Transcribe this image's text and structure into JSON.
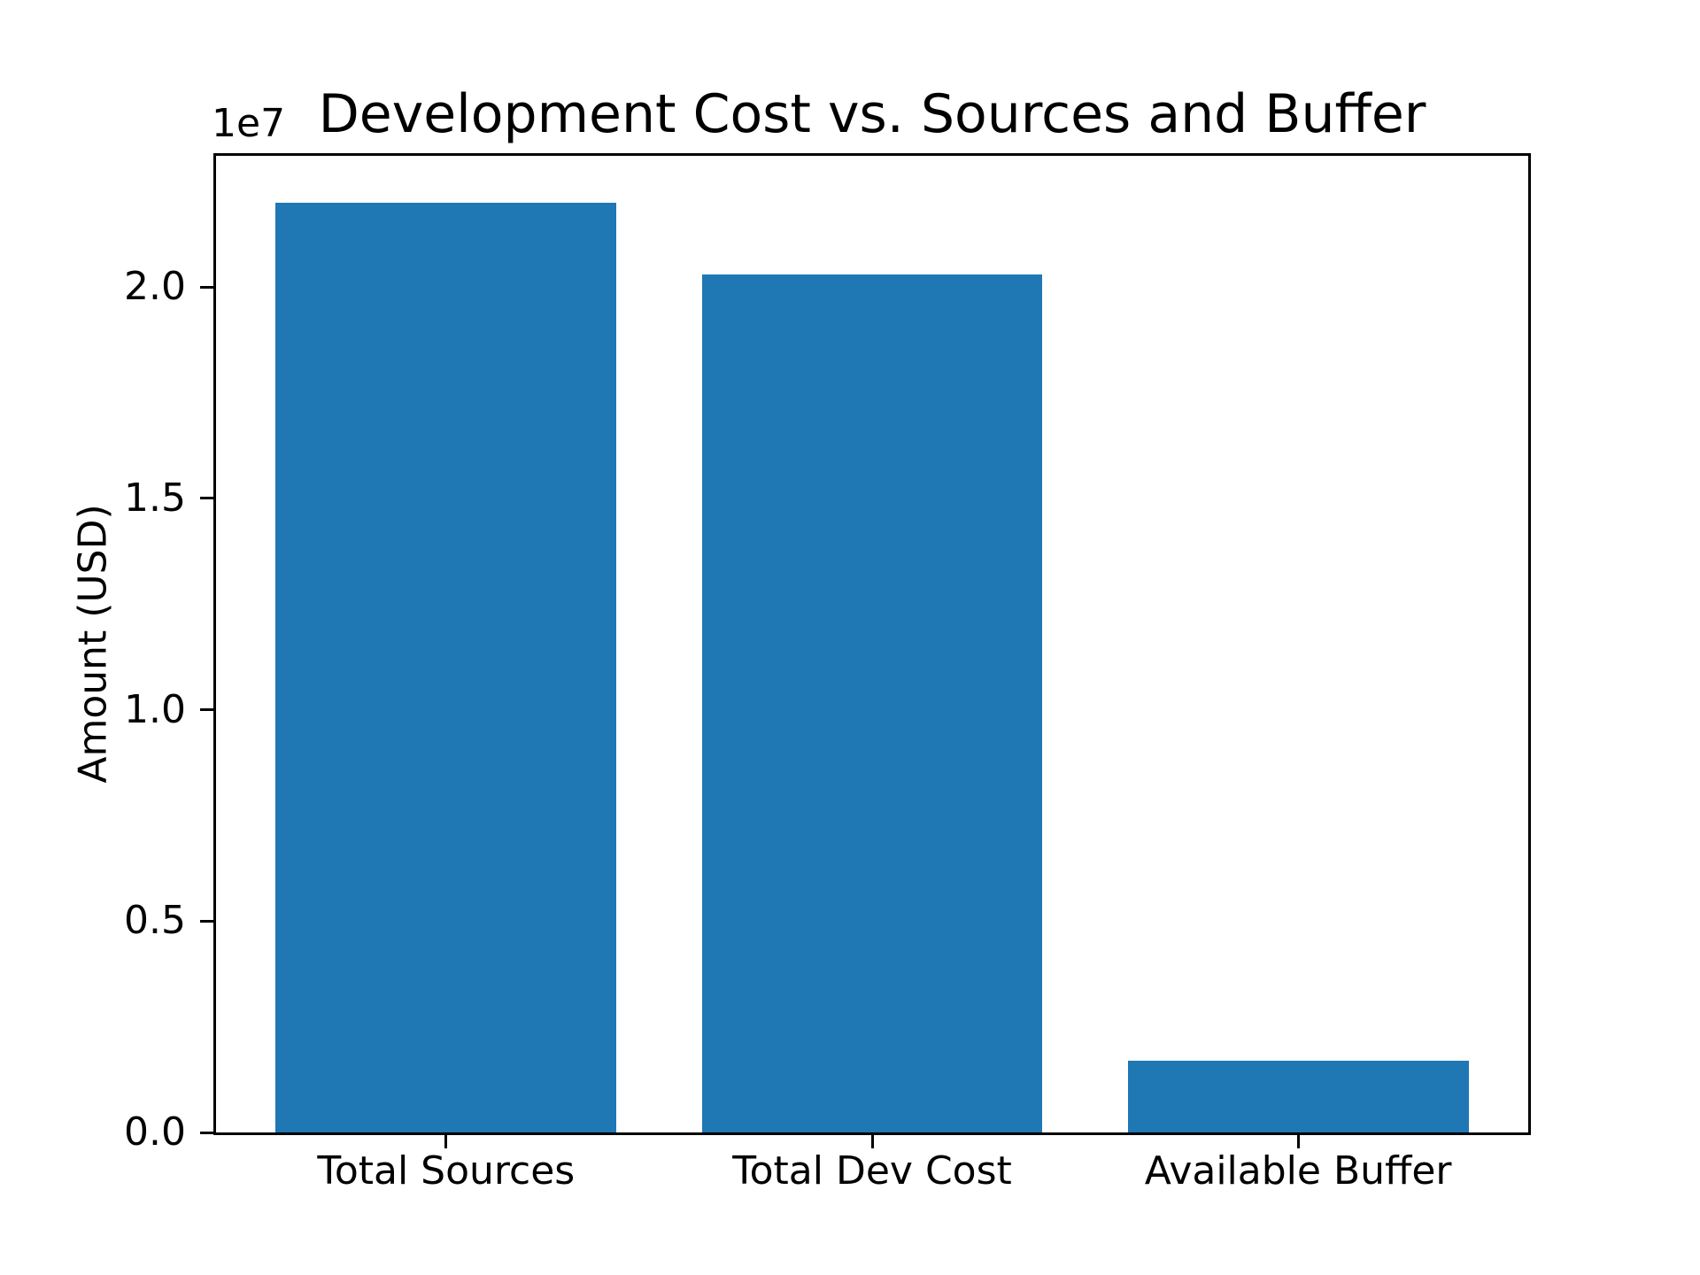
{
  "chart_data": {
    "type": "bar",
    "title": "Development Cost vs. Sources and Buffer",
    "categories": [
      "Total Sources",
      "Total Dev Cost",
      "Available Buffer"
    ],
    "values": [
      22000000,
      20300000,
      1700000
    ],
    "xlabel": "",
    "ylabel": "Amount (USD)",
    "offset_text": "1e7",
    "ylim": [
      0,
      23100000
    ],
    "xlim": [
      -0.54,
      2.54
    ],
    "bar_width": 0.8,
    "yticks": [
      0,
      5000000,
      10000000,
      15000000,
      20000000
    ],
    "ytick_labels": [
      "0.0",
      "0.5",
      "1.0",
      "1.5",
      "2.0"
    ],
    "bar_color": "#1f77b4",
    "text_color": "#000000",
    "background_color": "#ffffff",
    "grid": false,
    "legend": null
  }
}
